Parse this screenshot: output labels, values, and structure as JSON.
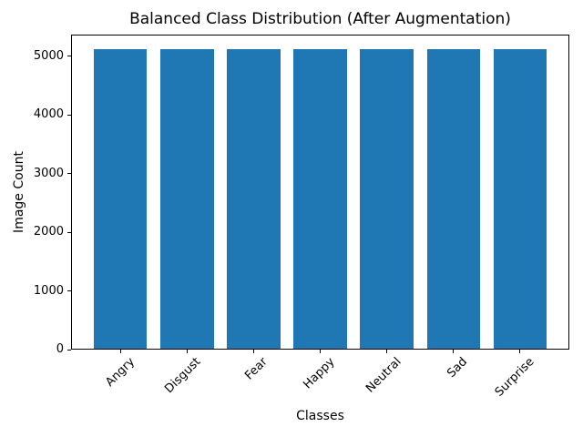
{
  "chart_data": {
    "type": "bar",
    "title": "Balanced Class Distribution (After Augmentation)",
    "xlabel": "Classes",
    "ylabel": "Image Count",
    "categories": [
      "Angry",
      "Disgust",
      "Fear",
      "Happy",
      "Neutral",
      "Sad",
      "Surprise"
    ],
    "values": [
      5110,
      5110,
      5110,
      5110,
      5110,
      5110,
      5110
    ],
    "bar_color": "#1f77b4",
    "ylim": [
      0,
      5365
    ],
    "yticks": [
      0,
      1000,
      2000,
      3000,
      4000,
      5000
    ],
    "ytick_labels": [
      "0",
      "1000",
      "2000",
      "3000",
      "4000",
      "5000"
    ],
    "x_tick_rotation_deg": 45,
    "grid": false,
    "legend_visible": false
  }
}
